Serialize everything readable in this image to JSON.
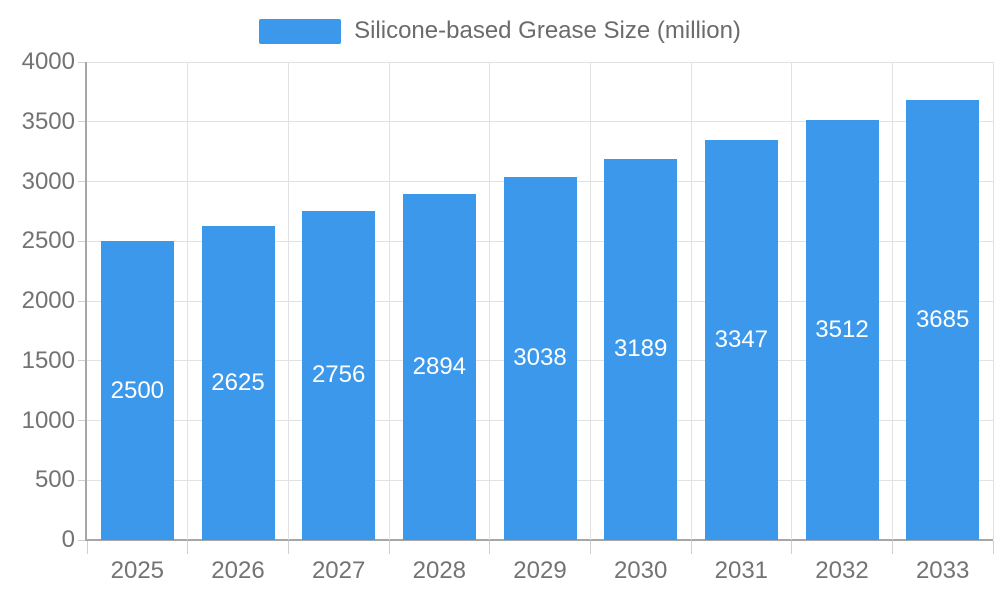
{
  "chart_data": {
    "type": "bar",
    "title": "Silicone-based Grease Size (million)",
    "legend": [
      "Silicone-based Grease Size (million)"
    ],
    "legend_position": "top-center",
    "categories": [
      "2025",
      "2026",
      "2027",
      "2028",
      "2029",
      "2030",
      "2031",
      "2032",
      "2033"
    ],
    "values": [
      2500,
      2625,
      2756,
      2894,
      3038,
      3189,
      3347,
      3512,
      3685
    ],
    "xlabel": "",
    "ylabel": "",
    "ylim": [
      0,
      4000
    ],
    "yticks": [
      0,
      500,
      1000,
      1500,
      2000,
      2500,
      3000,
      3500,
      4000
    ],
    "grid": true,
    "colors": {
      "bar": "#3C98EB",
      "bar_label": "#FFFFFF",
      "axis_text": "#737373",
      "legend_text": "#6B6B6B",
      "grid": "#E2E2E2",
      "axis_line": "#A6A6A6",
      "tick": "#CFCFCF"
    }
  }
}
